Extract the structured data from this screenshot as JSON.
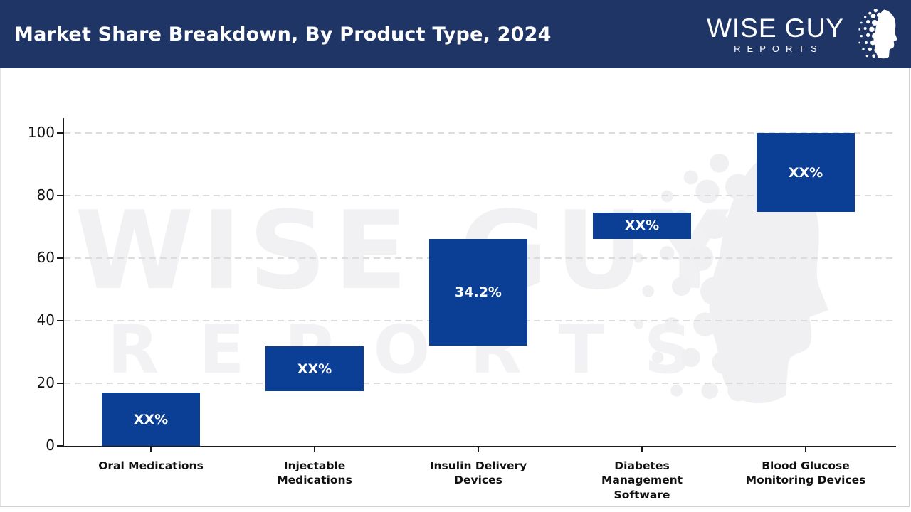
{
  "header": {
    "title": "Market Share Breakdown, By Product Type, 2024",
    "logo": {
      "line1": "WISE GUY",
      "line2": "REPORTS"
    }
  },
  "watermark": {
    "line1": "WISE GUY",
    "line2": "REPORTS"
  },
  "colors": {
    "header_bg": "#1f3566",
    "bar": "#0b3f96",
    "grid": "#dcdcdc",
    "axis": "#1a1a1a",
    "value_label": "#ffffff",
    "watermark": "#f1f1f3"
  },
  "chart_data": {
    "type": "bar",
    "subtype": "floating-waterfall",
    "title": "Market Share Breakdown, By Product Type, 2024",
    "xlabel": "",
    "ylabel": "",
    "ylim": [
      0,
      105
    ],
    "yticks": [
      0,
      20,
      40,
      60,
      80,
      100
    ],
    "grid": "horizontal-dashed",
    "legend": "none",
    "bar_color": "#0b3f96",
    "categories": [
      "Oral Medications",
      "Injectable Medications",
      "Insulin Delivery Devices",
      "Diabetes Management Software",
      "Blood Glucose Monitoring Devices"
    ],
    "segments": [
      {
        "category": "Oral Medications",
        "category_lines": [
          "Oral Medications"
        ],
        "base": 0,
        "top": 17,
        "label": "XX%"
      },
      {
        "category": "Injectable Medications",
        "category_lines": [
          "Injectable",
          "Medications"
        ],
        "base": 17.5,
        "top": 31.8,
        "label": "XX%"
      },
      {
        "category": "Insulin Delivery Devices",
        "category_lines": [
          "Insulin Delivery",
          "Devices"
        ],
        "base": 32,
        "top": 66.2,
        "label": "34.2%"
      },
      {
        "category": "Diabetes Management Software",
        "category_lines": [
          "Diabetes",
          "Management",
          "Software"
        ],
        "base": 66.2,
        "top": 74.5,
        "label": "XX%"
      },
      {
        "category": "Blood Glucose Monitoring Devices",
        "category_lines": [
          "Blood Glucose",
          "Monitoring Devices"
        ],
        "base": 74.7,
        "top": 100,
        "label": "XX%"
      }
    ]
  }
}
